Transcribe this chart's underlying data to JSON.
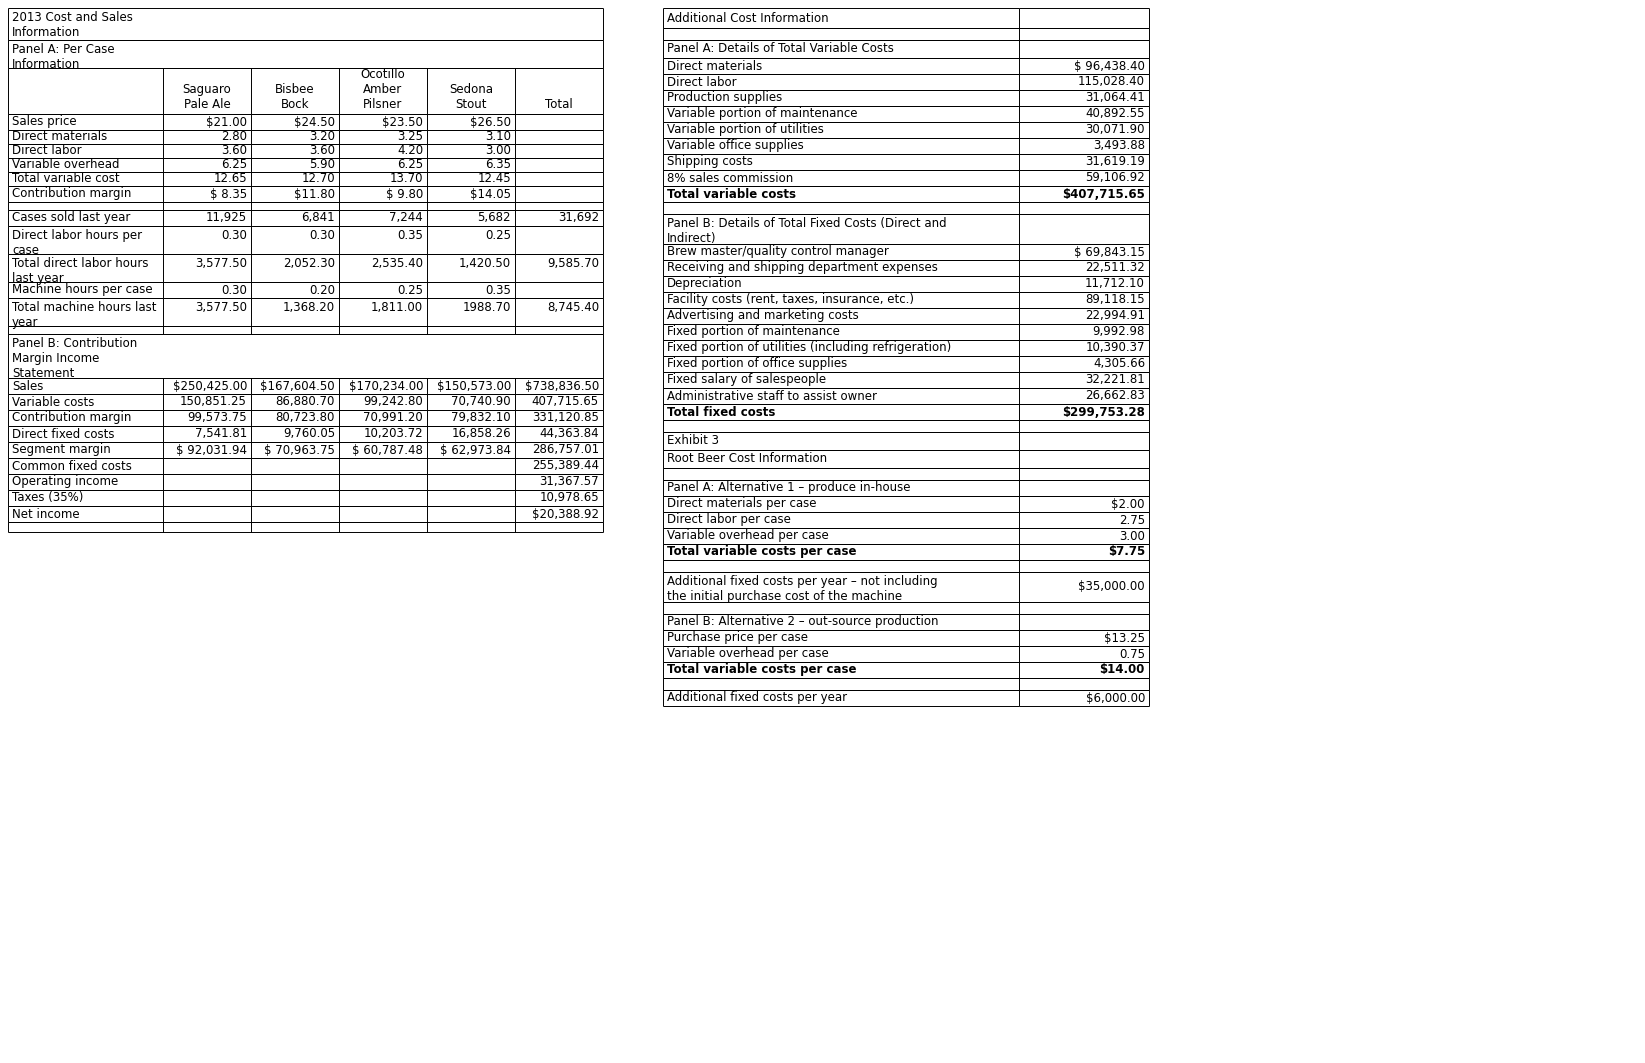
{
  "left_table": {
    "title": "2013 Cost and Sales\nInformation",
    "panel_a_title": "Panel A: Per Case\nInformation",
    "col_headers": [
      "",
      "Saguaro\nPale Ale",
      "Bisbee\nBock",
      "Ocotillo\nAmber\nPilsner",
      "Sedona\nStout",
      "Total"
    ],
    "panel_a_rows": [
      [
        "Sales price",
        "$21.00",
        "$24.50",
        "$23.50",
        "$26.50",
        ""
      ],
      [
        "Direct materials",
        "2.80",
        "3.20",
        "3.25",
        "3.10",
        ""
      ],
      [
        "Direct labor",
        "3.60",
        "3.60",
        "4.20",
        "3.00",
        ""
      ],
      [
        "Variable overhead",
        "6.25",
        "5.90",
        "6.25",
        "6.35",
        ""
      ],
      [
        "Total variable cost",
        "12.65",
        "12.70",
        "13.70",
        "12.45",
        ""
      ],
      [
        "Contribution margin",
        "$ 8.35",
        "$11.80",
        "$ 9.80",
        "$14.05",
        ""
      ]
    ],
    "panel_a2_rows": [
      [
        "Cases sold last year",
        "11,925",
        "6,841",
        "7,244",
        "5,682",
        "31,692"
      ],
      [
        "Direct labor hours per\ncase",
        "0.30",
        "0.30",
        "0.35",
        "0.25",
        ""
      ],
      [
        "Total direct labor hours\nlast year",
        "3,577.50",
        "2,052.30",
        "2,535.40",
        "1,420.50",
        "9,585.70"
      ],
      [
        "Machine hours per case",
        "0.30",
        "0.20",
        "0.25",
        "0.35",
        ""
      ],
      [
        "Total machine hours last\nyear",
        "3,577.50",
        "1,368.20",
        "1,811.00",
        "1988.70",
        "8,745.40"
      ]
    ],
    "panel_b_title": "Panel B: Contribution\nMargin Income\nStatement",
    "panel_b_rows": [
      [
        "Sales",
        "$250,425.00",
        "$167,604.50",
        "$170,234.00",
        "$150,573.00",
        "$738,836.50"
      ],
      [
        "Variable costs",
        "150,851.25",
        "86,880.70",
        "99,242.80",
        "70,740.90",
        "407,715.65"
      ],
      [
        "Contribution margin",
        "99,573.75",
        "80,723.80",
        "70,991.20",
        "79,832.10",
        "331,120.85"
      ],
      [
        "Direct fixed costs",
        "7,541.81",
        "9,760.05",
        "10,203.72",
        "16,858.26",
        "44,363.84"
      ],
      [
        "Segment margin",
        "$ 92,031.94",
        "$ 70,963.75",
        "$ 60,787.48",
        "$ 62,973.84",
        "286,757.01"
      ],
      [
        "Common fixed costs",
        "",
        "",
        "",
        "",
        "255,389.44"
      ],
      [
        "Operating income",
        "",
        "",
        "",
        "",
        "31,367.57"
      ],
      [
        "Taxes (35%)",
        "",
        "",
        "",
        "",
        "10,978.65"
      ],
      [
        "Net income",
        "",
        "",
        "",
        "",
        "$20,388.92"
      ]
    ]
  },
  "right_table": {
    "title": "Additional Cost Information",
    "panel_a_title": "Panel A: Details of Total Variable Costs",
    "panel_a_rows": [
      [
        "Direct materials",
        "$ 96,438.40"
      ],
      [
        "Direct labor",
        "115,028.40"
      ],
      [
        "Production supplies",
        "31,064.41"
      ],
      [
        "Variable portion of maintenance",
        "40,892.55"
      ],
      [
        "Variable portion of utilities",
        "30,071.90"
      ],
      [
        "Variable office supplies",
        "3,493.88"
      ],
      [
        "Shipping costs",
        "31,619.19"
      ],
      [
        "8% sales commission",
        "59,106.92"
      ],
      [
        "Total variable costs",
        "$407,715.65"
      ]
    ],
    "panel_b_title": "Panel B: Details of Total Fixed Costs (Direct and\nIndirect)",
    "panel_b_rows": [
      [
        "Brew master/quality control manager",
        "$ 69,843.15"
      ],
      [
        "Receiving and shipping department expenses",
        "22,511.32"
      ],
      [
        "Depreciation",
        "11,712.10"
      ],
      [
        "Facility costs (rent, taxes, insurance, etc.)",
        "89,118.15"
      ],
      [
        "Advertising and marketing costs",
        "22,994.91"
      ],
      [
        "Fixed portion of maintenance",
        "9,992.98"
      ],
      [
        "Fixed portion of utilities (including refrigeration)",
        "10,390.37"
      ],
      [
        "Fixed portion of office supplies",
        "4,305.66"
      ],
      [
        "Fixed salary of salespeople",
        "32,221.81"
      ],
      [
        "Administrative staff to assist owner",
        "26,662.83"
      ],
      [
        "Total fixed costs",
        "$299,753.28"
      ]
    ],
    "exhibit3_title": "Exhibit 3",
    "exhibit3_sub": "Root Beer Cost Information",
    "panel_c_title": "Panel A: Alternative 1 – produce in-house",
    "panel_c_rows": [
      [
        "Direct materials per case",
        "$2.00"
      ],
      [
        "Direct labor per case",
        "2.75"
      ],
      [
        "Variable overhead per case",
        "3.00"
      ],
      [
        "Total variable costs per case",
        "$7.75"
      ]
    ],
    "note1": "Additional fixed costs per year – not including\nthe initial purchase cost of the machine",
    "note1_val": "$35,000.00",
    "panel_d_title": "Panel B: Alternative 2 – out-source production",
    "panel_d_rows": [
      [
        "Purchase price per case",
        "$13.25"
      ],
      [
        "Variable overhead per case",
        "0.75"
      ],
      [
        "Total variable costs per case",
        "$14.00"
      ]
    ],
    "note2": "Additional fixed costs per year",
    "note2_val": "$6,000.00"
  },
  "bg_color": "#ffffff",
  "border_color": "#000000",
  "lw": 0.7,
  "font_size": 8.5
}
